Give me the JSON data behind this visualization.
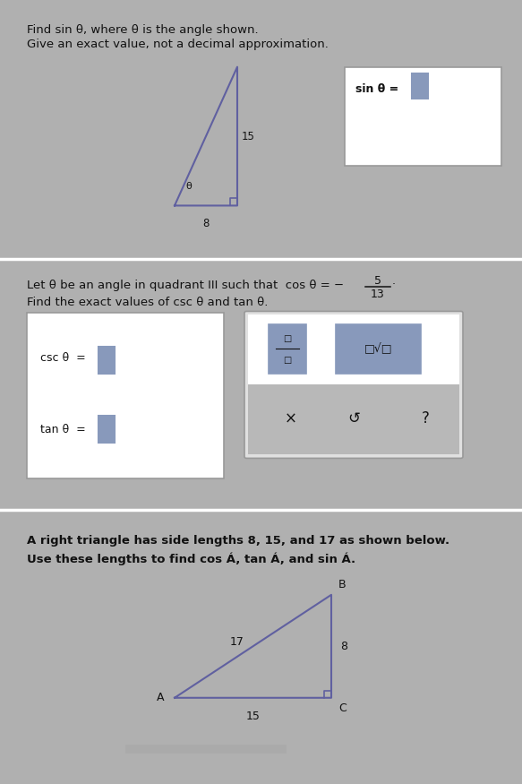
{
  "bg_color": "#b0b0b0",
  "panel_color": "#e0e0e0",
  "section1": {
    "title1": "Find sin θ, where θ is the angle shown.",
    "title2": "Give an exact value, not a decimal approximation."
  },
  "section2": {
    "title1": "Let θ be an angle in quadrant III such that  cos θ = −",
    "fraction_num": "5",
    "fraction_den": "13",
    "title2": "Find the exact values of csc θ and tan θ."
  },
  "section3": {
    "title1": "A right triangle has side lengths 8, 15, and 17 as shown below.",
    "title2": "Use these lengths to find cos Á, tan Á, and sin Á."
  },
  "divider_color": "#ffffff",
  "line_color": "#6060a0",
  "text_color": "#111111",
  "box_border_color": "#999999",
  "input_box_color": "#8899bb",
  "white": "#f0f0f0",
  "keypad_gray": "#b8b8b8"
}
